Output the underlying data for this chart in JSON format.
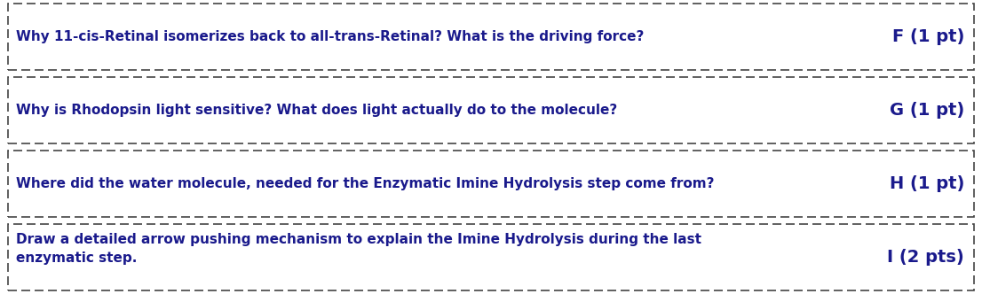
{
  "rows": [
    {
      "question": "Why 11-cis-Retinal isomerizes back to all-trans-Retinal? What is the driving force?",
      "label": "F (1 pt)",
      "multiline": false
    },
    {
      "question": "Why is Rhodopsin light sensitive? What does light actually do to the molecule?",
      "label": "G (1 pt)",
      "multiline": false
    },
    {
      "question": "Where did the water molecule, needed for the Enzymatic Imine Hydrolysis step come from?",
      "label": "H (1 pt)",
      "multiline": false
    },
    {
      "question": "Draw a detailed arrow pushing mechanism to explain the Imine Hydrolysis during the last\nenzymatic step.",
      "label": "I (2 pts)",
      "multiline": true
    }
  ],
  "background_color": "#ffffff",
  "text_color": "#1a1a8c",
  "border_color": "#444444",
  "question_fontsize": 11.0,
  "label_fontsize": 14.0,
  "fig_width": 11.06,
  "fig_height": 3.32,
  "dpi": 100
}
